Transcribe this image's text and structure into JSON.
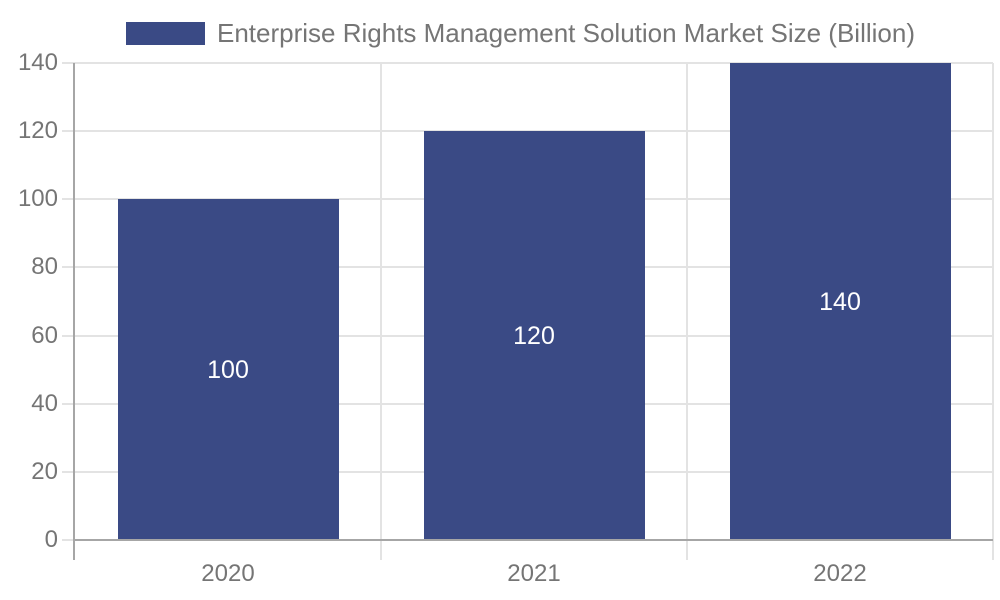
{
  "chart_data": {
    "type": "bar",
    "title": "Enterprise Rights Management Solution Market Size (Billion)",
    "categories": [
      "2020",
      "2021",
      "2022"
    ],
    "values": [
      100,
      120,
      140
    ],
    "bar_value_labels": [
      "100",
      "120",
      "140"
    ],
    "xlabel": "",
    "ylabel": "",
    "ylim": [
      0,
      140
    ],
    "yticks": [
      0,
      20,
      40,
      60,
      80,
      100,
      120,
      140
    ],
    "grid": true,
    "legend_position": "top",
    "colors": {
      "bar": "#3A4A85",
      "bar_label_text": "#FFFFFF",
      "tick_text": "#757575",
      "legend_text": "#757575",
      "grid_line": "#E3E3E3",
      "axis_line": "#A6A6A6",
      "background": "#FFFFFF"
    }
  },
  "legend": {
    "label": "Enterprise Rights Management Solution Market Size (Billion)",
    "swatch_color": "#3A4A85"
  }
}
